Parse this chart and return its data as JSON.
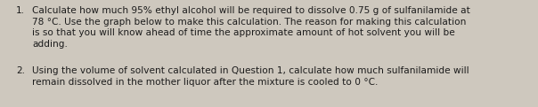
{
  "background_color": "#cec8be",
  "text_color": "#1c1c1c",
  "item1_number": "1.",
  "item1_body": "Calculate how much 95% ethyl alcohol will be required to dissolve 0.75 g of sulfanilamide at\n78 °C. Use the graph below to make this calculation. The reason for making this calculation\nis so that you will know ahead of time the approximate amount of hot solvent you will be\nadding.",
  "item2_number": "2.",
  "item2_body": "Using the volume of solvent calculated in Question 1, calculate how much sulfanilamide will\nremain dissolved in the mother liquor after the mixture is cooled to 0 °C.",
  "font_size": 7.6,
  "fig_width": 6.04,
  "fig_height": 1.21,
  "dpi": 100
}
